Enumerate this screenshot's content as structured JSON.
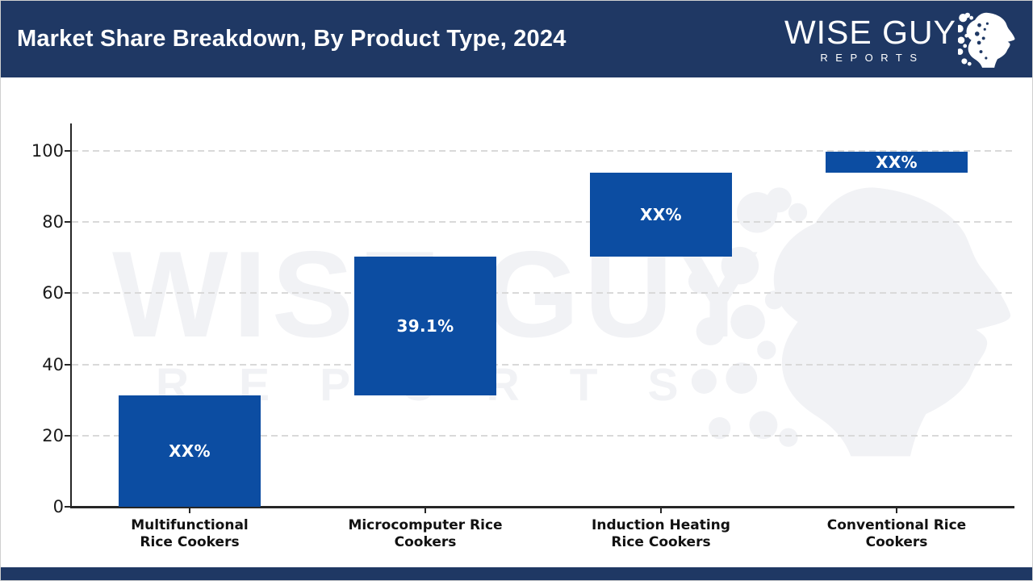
{
  "header": {
    "title": "Market Share Breakdown, By Product Type, 2024",
    "logo": {
      "wordmark": "WISE GUY",
      "subtext": "REPORTS"
    }
  },
  "watermark": {
    "line1": "WISE GUY",
    "line2": "REPORTS"
  },
  "footer": {},
  "colors": {
    "header_navy": "#1F3864",
    "bar_blue": "#0C4DA2",
    "axis": "#262626",
    "gridline": "#D9D9D9",
    "watermark_gray": "#F1F2F5",
    "bar_label_white": "#FFFFFF"
  },
  "chart_data": {
    "type": "bar",
    "variant": "floating-stacked-segments",
    "title": "Market Share Breakdown, By Product Type, 2024",
    "xlabel": "",
    "ylabel": "",
    "ylim": [
      0,
      100
    ],
    "yticks": [
      0,
      20,
      40,
      60,
      80,
      100
    ],
    "grid": "horizontal-dashed",
    "legend": "none",
    "bar_color": "#0C4DA2",
    "categories": [
      "Multifunctional\nRice Cookers",
      "Microcomputer Rice\nCookers",
      "Induction Heating\nRice Cookers",
      "Conventional Rice\nCookers"
    ],
    "segments": [
      {
        "category": "Multifunctional Rice Cookers",
        "label": "XX%",
        "start": 0,
        "end": 31.3
      },
      {
        "category": "Microcomputer Rice Cookers",
        "label": "39.1%",
        "start": 31.3,
        "end": 70.4
      },
      {
        "category": "Induction Heating Rice Cookers",
        "label": "XX%",
        "start": 70.4,
        "end": 93.8
      },
      {
        "category": "Conventional Rice Cookers",
        "label": "XX%",
        "start": 93.8,
        "end": 99.8
      }
    ]
  }
}
